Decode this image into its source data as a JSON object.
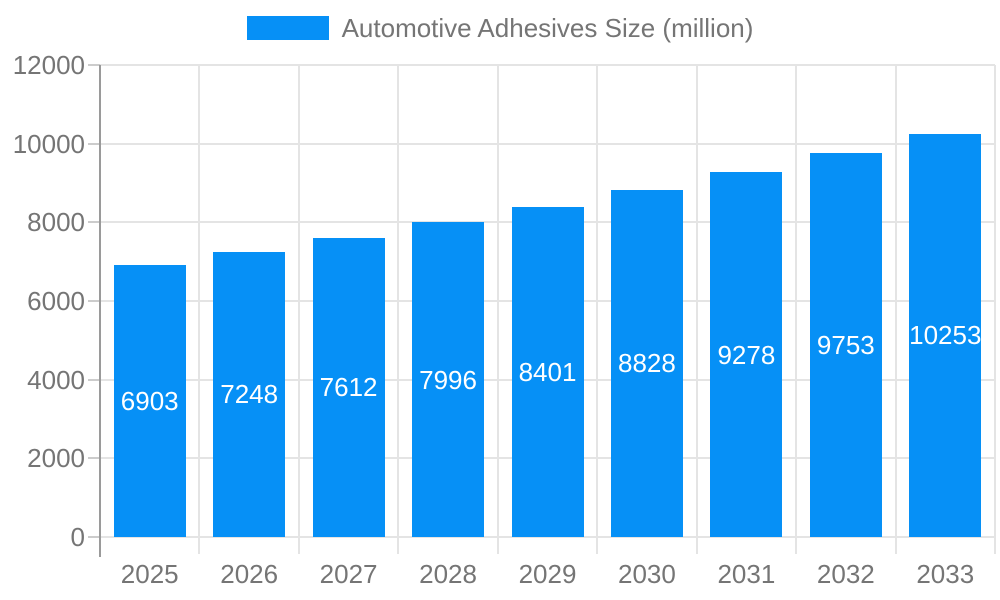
{
  "chart_data": {
    "type": "bar",
    "title": "Automotive Adhesives Size (million)",
    "legend_position": "top",
    "categories": [
      "2025",
      "2026",
      "2027",
      "2028",
      "2029",
      "2030",
      "2031",
      "2032",
      "2033"
    ],
    "series": [
      {
        "name": "Automotive Adhesives Size (million)",
        "values": [
          6903,
          7248,
          7612,
          7996,
          8401,
          8828,
          9278,
          9753,
          10253
        ]
      }
    ],
    "xlabel": "",
    "ylabel": "",
    "ylim": [
      0,
      12000
    ],
    "yticks": [
      0,
      2000,
      4000,
      6000,
      8000,
      10000,
      12000
    ],
    "grid": true,
    "value_labels_inside_bars": true,
    "colors": {
      "bar": "#0690f6",
      "bar_label": "#ffffff",
      "axis_text": "#757575",
      "legend_text": "#757575",
      "grid_line": "#e4e4e4",
      "axis_line": "#9a9a9a",
      "tick": "#cccccc",
      "background": "#ffffff"
    }
  }
}
